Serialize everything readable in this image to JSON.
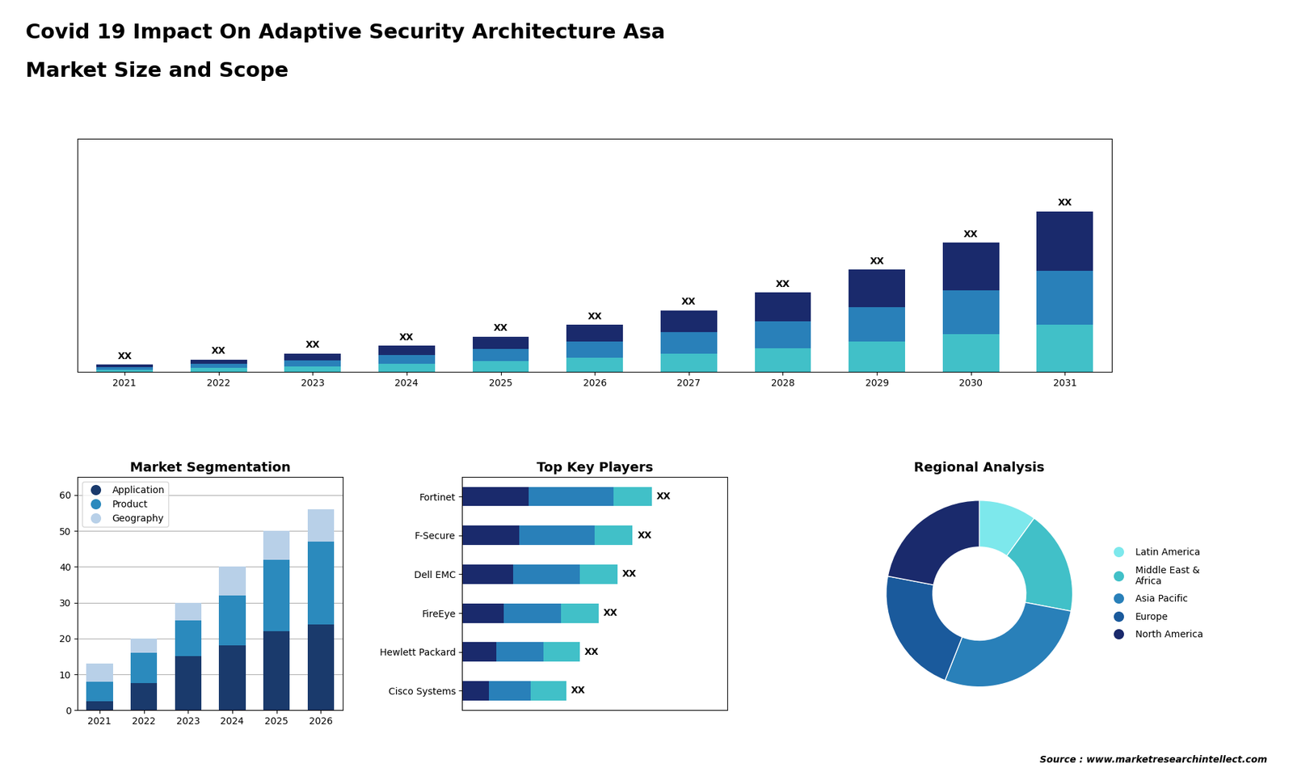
{
  "title": "Covid 19 Impact On Adaptive Security Architecture Asa",
  "subtitle": "Market Size and Scope",
  "annotations": [
    "Source : www.marketresearchintellect.com"
  ],
  "chart_data": [
    {
      "type": "bar",
      "stacked": true,
      "categories": [
        "2021",
        "2022",
        "2023",
        "2024",
        "2025",
        "2026",
        "2027",
        "2028",
        "2029",
        "2030",
        "2031"
      ],
      "series": [
        {
          "color": "#41c0c8",
          "values": [
            1.5,
            2.5,
            3.5,
            5.0,
            6.5,
            8.5,
            11.0,
            14.0,
            18.0,
            22.5,
            28.0
          ]
        },
        {
          "color": "#2980b9",
          "values": [
            1.5,
            2.5,
            3.5,
            5.0,
            7.0,
            9.5,
            12.5,
            16.0,
            20.5,
            26.0,
            32.0
          ]
        },
        {
          "color": "#1a2a6c",
          "values": [
            1.5,
            2.5,
            4.0,
            5.5,
            7.5,
            10.0,
            13.0,
            17.0,
            22.0,
            28.0,
            35.0
          ],
          "value_labels": [
            "XX",
            "XX",
            "XX",
            "XX",
            "XX",
            "XX",
            "XX",
            "XX",
            "XX",
            "XX",
            "XX"
          ]
        }
      ],
      "ylim": [
        0,
        137.75
      ],
      "tick_labels": "x"
    },
    {
      "type": "bar",
      "stacked": true,
      "title": "Market Segmentation",
      "categories": [
        "2021",
        "2022",
        "2023",
        "2024",
        "2025",
        "2026"
      ],
      "series": [
        {
          "name": "Application",
          "color": "#1a3a6c",
          "values": [
            2.5,
            7.5,
            15.0,
            18.0,
            22.0,
            24.0
          ]
        },
        {
          "name": "Product",
          "color": "#2b8abd",
          "values": [
            5.5,
            8.5,
            10.0,
            14.0,
            20.0,
            23.0
          ]
        },
        {
          "name": "Geography",
          "color": "#b8d0e8",
          "values": [
            5.0,
            4.0,
            5.0,
            8.0,
            8.0,
            9.0
          ]
        }
      ],
      "ylim": [
        0,
        65
      ],
      "yticks": [
        0,
        10,
        20,
        30,
        40,
        50,
        60
      ],
      "grid": true,
      "legend": "upper left"
    },
    {
      "type": "bar",
      "stacked": true,
      "orientation": "horizontal",
      "title": "Top Key Players",
      "categories": [
        "Fortinet",
        "F-Secure",
        "Dell EMC",
        "FireEye",
        "Hewlett Packard",
        "Cisco Systems"
      ],
      "series": [
        {
          "color": "#1a2a6c",
          "values": [
            35,
            30,
            27,
            22,
            18,
            14
          ]
        },
        {
          "color": "#2980b9",
          "values": [
            45,
            40,
            35,
            30,
            25,
            22
          ]
        },
        {
          "color": "#41c0c8",
          "values": [
            20,
            20,
            20,
            20,
            19,
            19
          ],
          "value_labels": [
            "XX",
            "XX",
            "XX",
            "XX",
            "XX",
            "XX"
          ]
        }
      ],
      "xlim": [
        0,
        140
      ],
      "tick_labels": "y"
    },
    {
      "type": "pie",
      "title": "Regional Analysis",
      "categories": [
        "Latin America",
        "Middle East &\nAfrica",
        "Asia Pacific",
        "Europe",
        "North America"
      ],
      "values": [
        10,
        18,
        28,
        22,
        22
      ],
      "colors": [
        "#7de8ec",
        "#41c0c8",
        "#2980b9",
        "#1a5a9c",
        "#1a2a6c"
      ],
      "legend": "center left"
    }
  ]
}
